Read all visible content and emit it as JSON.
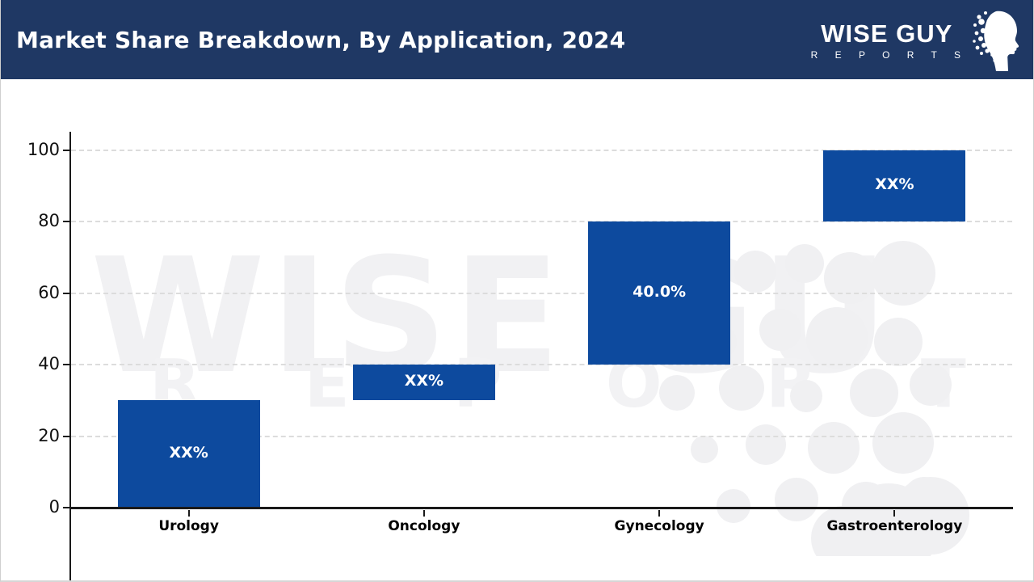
{
  "header": {
    "title": "Market Share Breakdown, By Application, 2024",
    "logo": {
      "line1": "WISE GUY",
      "line2": "R E P O R T S"
    }
  },
  "watermark": {
    "line1": "WISE GU",
    "line2": "R E P O R T S"
  },
  "colors": {
    "header_bg": "#1f3864",
    "bar": "#0d4a9e",
    "gridline": "#dcdcdc",
    "axis": "#1a1a1a",
    "bar_label_text": "#ffffff",
    "watermark": "#f1f1f3"
  },
  "chart_data": {
    "type": "bar",
    "subtype": "waterfall",
    "title": "Market Share Breakdown, By Application, 2024",
    "categories": [
      "Urology",
      "Oncology",
      "Gynecology",
      "Gastroenterology"
    ],
    "bars": [
      {
        "category": "Urology",
        "start": 0,
        "end": 30,
        "value": 30,
        "label": "XX%"
      },
      {
        "category": "Oncology",
        "start": 30,
        "end": 40,
        "value": 10,
        "label": "XX%"
      },
      {
        "category": "Gynecology",
        "start": 40,
        "end": 80,
        "value": 40,
        "label": "40.0%"
      },
      {
        "category": "Gastroenterology",
        "start": 80,
        "end": 100,
        "value": 20,
        "label": "XX%"
      }
    ],
    "y_ticks": [
      0,
      20,
      40,
      60,
      80,
      100
    ],
    "ylim": [
      0,
      105
    ],
    "xlabel": "",
    "ylabel": "",
    "grid": "horizontal-dashed",
    "legend": "none"
  }
}
